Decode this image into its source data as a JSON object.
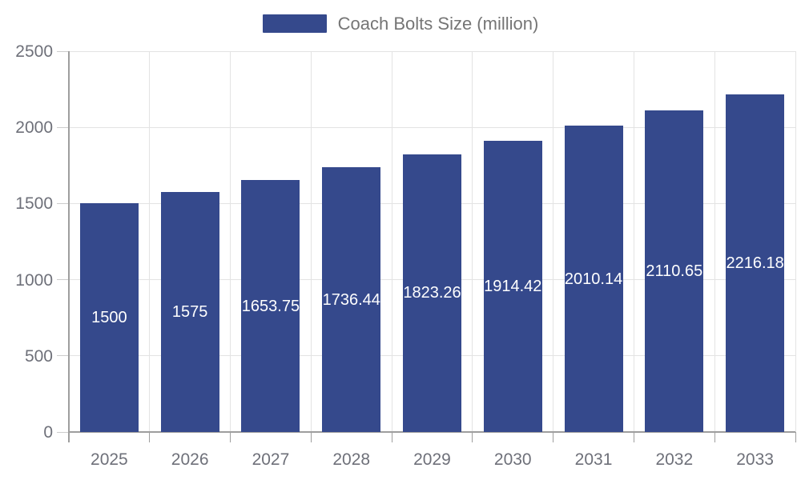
{
  "legend": {
    "label": "Coach Bolts Size (million)"
  },
  "colors": {
    "bar": "#35498C",
    "bar_label_text": "#FFFFFF",
    "legend_text": "#757575",
    "axis_text": "#6E7079",
    "axis_line": "#9E9E9E",
    "tick_line": "#CCCCCC",
    "gridline": "#E3E3E3",
    "background": "#FFFFFF"
  },
  "chart_data": {
    "type": "bar",
    "title": "Coach Bolts Size (million)",
    "categories": [
      "2025",
      "2026",
      "2027",
      "2028",
      "2029",
      "2030",
      "2031",
      "2032",
      "2033"
    ],
    "values": [
      1500,
      1575,
      1653.75,
      1736.44,
      1823.26,
      1914.42,
      2010.14,
      2110.65,
      2216.18
    ],
    "value_labels": [
      "1500",
      "1575",
      "1653.75",
      "1736.44",
      "1823.26",
      "1914.42",
      "2010.14",
      "2110.65",
      "2216.18"
    ],
    "series_name": "Coach Bolts Size (million)",
    "xlabel": "",
    "ylabel": "",
    "ylim": [
      0,
      2500
    ],
    "yticks": [
      0,
      500,
      1000,
      1500,
      2000,
      2500
    ],
    "ytick_labels": [
      "0",
      "500",
      "1000",
      "1500",
      "2000",
      "2500"
    ],
    "grid": true,
    "legend_position": "top",
    "value_labels_position": "inside-center"
  }
}
